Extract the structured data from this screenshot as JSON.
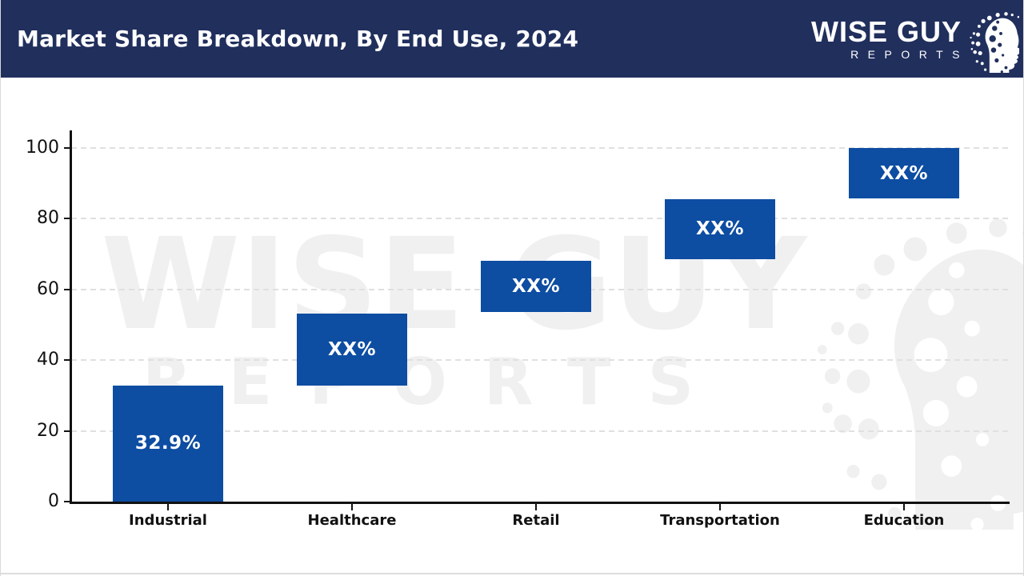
{
  "header": {
    "title": "Market Share Breakdown, By End Use, 2024",
    "logo": {
      "line1": "WISE GUY",
      "line2": "REPORTS"
    },
    "bg_color": "#212f5d"
  },
  "watermark": {
    "line1": "WISE GUY",
    "line2": "REPORTS"
  },
  "chart_data": {
    "type": "bar",
    "subtype": "waterfall",
    "title": "Market Share Breakdown, By End Use, 2024",
    "categories": [
      "Industrial",
      "Healthcare",
      "Retail",
      "Transportation",
      "Education"
    ],
    "segments": [
      {
        "category": "Industrial",
        "start": 0,
        "end": 32.9,
        "label": "32.9%"
      },
      {
        "category": "Healthcare",
        "start": 32.9,
        "end": 53.1,
        "label": "XX%"
      },
      {
        "category": "Retail",
        "start": 53.6,
        "end": 68.2,
        "label": "XX%"
      },
      {
        "category": "Transportation",
        "start": 68.5,
        "end": 85.6,
        "label": "XX%"
      },
      {
        "category": "Education",
        "start": 85.7,
        "end": 99.9,
        "label": "XX%"
      }
    ],
    "yticks": [
      0,
      20,
      40,
      60,
      80,
      100
    ],
    "ylim": [
      0,
      105
    ],
    "xlabel": "",
    "ylabel": "",
    "grid": "horizontal-dashed",
    "legend": "none",
    "bar_color": "#0d4da2",
    "label_color": "#ffffff",
    "axis_color": "#111111",
    "gridline_color": "#e0e0e0"
  }
}
